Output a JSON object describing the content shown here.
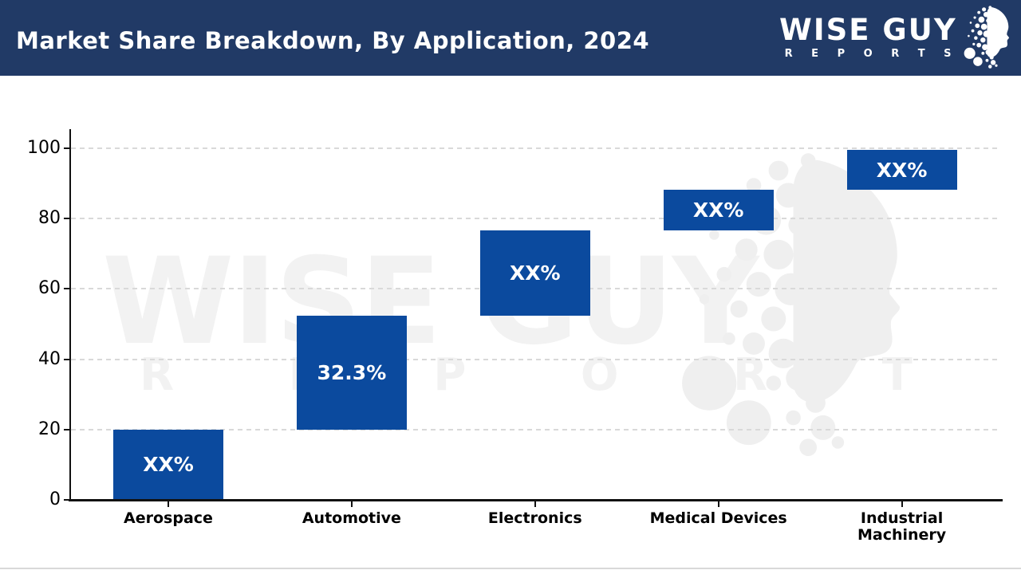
{
  "header": {
    "title": "Market Share Breakdown, By Application, 2024",
    "logo": {
      "line1": "WISE GUY",
      "line2": "R E P O R T S",
      "icon": "dotted-face-profile"
    }
  },
  "watermark": {
    "line1": "WISE GUY",
    "line2": "R E P O R T S",
    "icon": "dotted-face-profile"
  },
  "colors": {
    "header_bg": "#213a66",
    "bar": "#0b4a9e",
    "grid": "#d9d9d9",
    "axis": "#111111",
    "watermark": "#f2f2f2",
    "bar_label": "#ffffff"
  },
  "chart_data": {
    "type": "bar",
    "subtype": "waterfall-floating-bars",
    "title": "Market Share Breakdown, By Application, 2024",
    "xlabel": "",
    "ylabel": "",
    "ylim": [
      0,
      106
    ],
    "y_ticks": [
      0,
      20,
      40,
      60,
      80,
      100
    ],
    "grid": "horizontal-dashed",
    "legend": "none",
    "categories": [
      "Aerospace",
      "Automotive",
      "Electronics",
      "Medical Devices",
      "Industrial\nMachinery"
    ],
    "bars": [
      {
        "category": "Aerospace",
        "start": 0,
        "end": 20,
        "value": 20,
        "label": "XX%"
      },
      {
        "category": "Automotive",
        "start": 20,
        "end": 52.3,
        "value": 32.3,
        "label": "32.3%"
      },
      {
        "category": "Electronics",
        "start": 52.3,
        "end": 76.6,
        "value": 24.3,
        "label": "XX%"
      },
      {
        "category": "Medical Devices",
        "start": 76.6,
        "end": 88.2,
        "value": 11.6,
        "label": "XX%"
      },
      {
        "category": "Industrial\nMachinery",
        "start": 88.2,
        "end": 99.5,
        "value": 11.3,
        "label": "XX%"
      }
    ]
  }
}
